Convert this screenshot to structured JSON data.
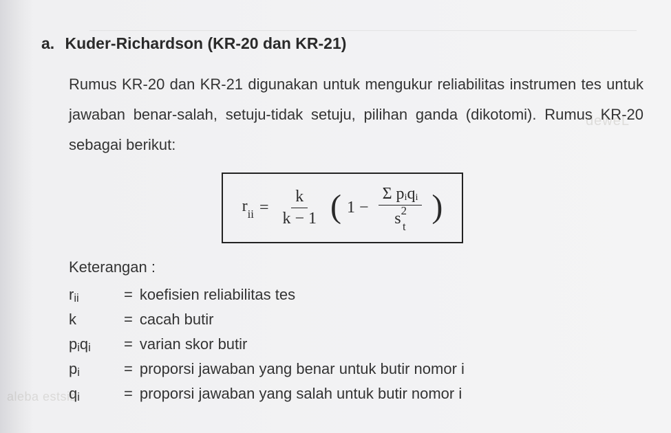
{
  "section": {
    "label": "a.",
    "title": "Kuder-Richardson (KR-20 dan KR-21)",
    "body": "Rumus KR-20 dan KR-21 digunakan untuk mengukur reliabilitas instrumen tes untuk jawaban benar-salah, setuju-tidak setuju, pilihan ganda (dikotomi). Rumus KR-20 sebagai berikut:"
  },
  "formula": {
    "lhs_base": "r",
    "lhs_sub": "ii",
    "eq": "=",
    "frac1_num": "k",
    "frac1_den": "k − 1",
    "lparen": "(",
    "one_minus": "1 −",
    "frac2_num": "Σ pᵢqᵢ",
    "frac2_den_base": "s",
    "frac2_den_sup": "2",
    "frac2_den_sub": "t",
    "rparen": ")",
    "border_color": "#222222"
  },
  "keterangan": {
    "label": "Keterangan :",
    "rows": [
      {
        "sym_base": "r",
        "sym_sub": "ii",
        "desc": "koefisien reliabilitas tes"
      },
      {
        "sym_base": "k",
        "sym_sub": "",
        "desc": "cacah butir"
      },
      {
        "sym_base": "p",
        "sym_sub": "i",
        "extra_base": "q",
        "extra_sub": "i",
        "desc": "varian skor butir"
      },
      {
        "sym_base": "p",
        "sym_sub": "i",
        "desc": "proporsi jawaban yang benar untuk butir nomor i"
      },
      {
        "sym_base": "q",
        "sym_sub": "i",
        "desc": "proporsi jawaban yang salah untuk butir nomor i"
      }
    ]
  },
  "colors": {
    "text": "#2a2a2a",
    "ghost": "rgba(120,115,100,0.18)",
    "bg_gradient_from": "#d8d8dc",
    "bg_gradient_to": "#f4f4f5"
  }
}
